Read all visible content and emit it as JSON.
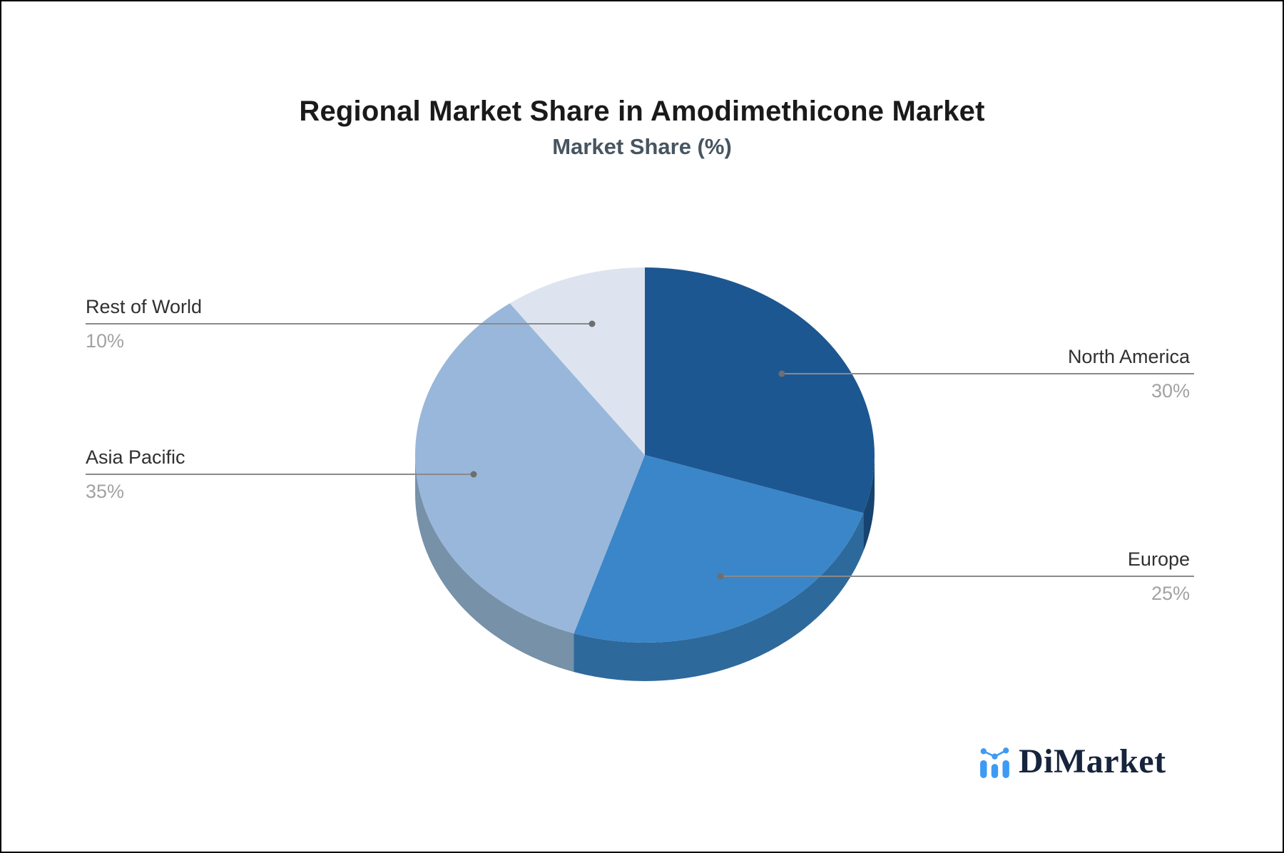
{
  "header": {
    "title": "Regional Market Share in Amodimethicone Market",
    "subtitle": "Market Share (%)",
    "title_color": "#1a1a1a",
    "subtitle_color": "#475560"
  },
  "chart_data": {
    "type": "pie",
    "title": "Regional Market Share in Amodimethicone Market",
    "subtitle": "Market Share (%)",
    "unit": "%",
    "effect": "3d",
    "legend": "none",
    "start_angle_deg": 90,
    "direction": "clockwise",
    "categories": [
      "North America",
      "Europe",
      "Asia Pacific",
      "Rest of World"
    ],
    "values": [
      30,
      25,
      35,
      10
    ],
    "slices": [
      {
        "label": "North America",
        "value": 30,
        "pct_label": "30%",
        "color": "#1d5791",
        "rim_color": "#16436f",
        "label_side": "right"
      },
      {
        "label": "Europe",
        "value": 25,
        "pct_label": "25%",
        "color": "#3a86c8",
        "rim_color": "#2e699c",
        "label_side": "right"
      },
      {
        "label": "Asia Pacific",
        "value": 35,
        "pct_label": "35%",
        "color": "#99b7da",
        "rim_color": "#7691a8",
        "label_side": "left"
      },
      {
        "label": "Rest of World",
        "value": 10,
        "pct_label": "10%",
        "color": "#dde4f0",
        "rim_color": "#b9c4d4",
        "label_side": "left"
      }
    ],
    "style": {
      "leader_line_color": "#8a8a8a",
      "leader_dot_color": "#6e6e6e",
      "label_color": "#303030",
      "pct_color": "#a2a2a2"
    }
  },
  "branding": {
    "logo_text": "DiMarket",
    "logo_icon": "bar-line-chart-icon",
    "icon_color": "#3e9bf4",
    "text_color": "#16243c"
  }
}
